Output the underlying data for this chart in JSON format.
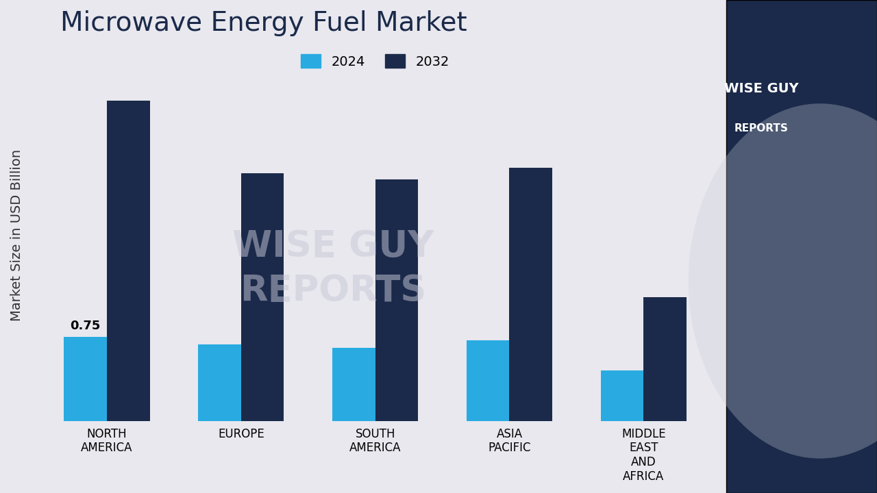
{
  "title": "Microwave Energy Fuel Market",
  "ylabel": "Market Size in USD Billion",
  "categories": [
    "NORTH\nAMERICA",
    "EUROPE",
    "SOUTH\nAMERICA",
    "ASIA\nPACIFIC",
    "MIDDLE\nEAST\nAND\nAFRICA"
  ],
  "values_2024": [
    0.75,
    0.68,
    0.65,
    0.72,
    0.45
  ],
  "values_2032": [
    2.85,
    2.2,
    2.15,
    2.25,
    1.1
  ],
  "color_2024": "#29ABE2",
  "color_2032": "#1B2A4A",
  "annotation_value": "0.75",
  "annotation_bar_index": 0,
  "legend_labels": [
    "2024",
    "2032"
  ],
  "background_color": "#E8E8EE",
  "title_color": "#1B2A4A",
  "ylabel_color": "#333333",
  "title_fontsize": 28,
  "ylabel_fontsize": 14,
  "tick_fontsize": 12,
  "legend_fontsize": 14,
  "bar_width": 0.32,
  "ylim": [
    0,
    3.3
  ],
  "right_panel_color": "#1B2A4A",
  "watermark_color": "#C8C8D8",
  "logo_line1": "WISE GUY",
  "logo_line2": "REPORTS"
}
